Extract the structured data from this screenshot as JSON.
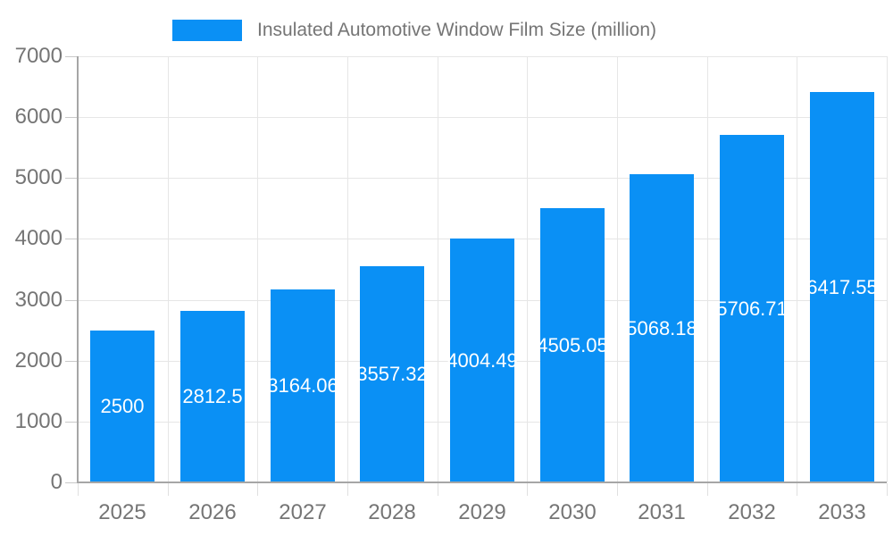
{
  "legend": {
    "label": "Insulated Automotive Window Film Size (million)"
  },
  "colors": {
    "bar": "#0a90f5",
    "bar_label": "#ffffff",
    "axis_text": "#757575",
    "grid": "#e6e6e6",
    "axis_line": "#a6a6a6"
  },
  "chart_data": {
    "type": "bar",
    "title": "",
    "xlabel": "",
    "ylabel": "",
    "categories": [
      "2025",
      "2026",
      "2027",
      "2028",
      "2029",
      "2030",
      "2031",
      "2032",
      "2033"
    ],
    "series": [
      {
        "name": "Insulated Automotive Window Film Size (million)",
        "values": [
          2500,
          2812.5,
          3164.06,
          3557.32,
          4004.49,
          4505.05,
          5068.18,
          5706.71,
          6417.55
        ]
      }
    ],
    "value_labels": [
      "2500",
      "2812.5",
      "3164.06",
      "3557.32",
      "4004.49",
      "4505.05",
      "5068.18",
      "5706.71",
      "6417.55"
    ],
    "ylim": [
      0,
      7000
    ],
    "ytick_step": 1000,
    "ytick_labels": [
      "0",
      "1000",
      "2000",
      "3000",
      "4000",
      "5000",
      "6000",
      "7000"
    ],
    "grid": true,
    "legend_position": "top"
  }
}
